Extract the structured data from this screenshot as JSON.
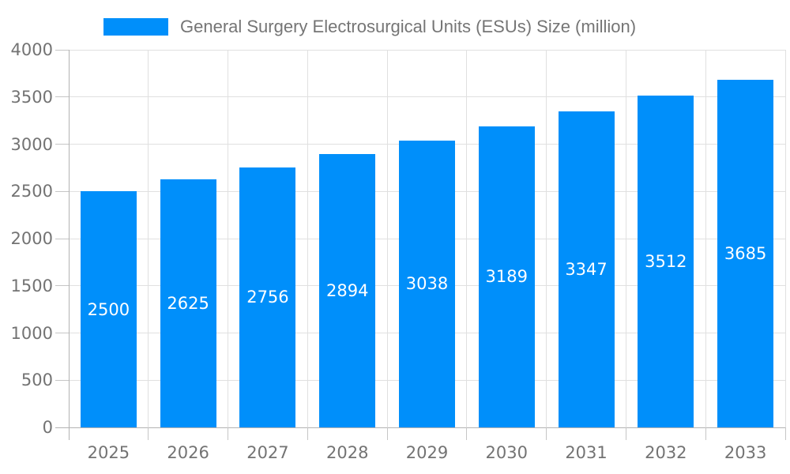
{
  "legend": {
    "label": "General Surgery Electrosurgical Units (ESUs) Size (million)"
  },
  "chart_data": {
    "type": "bar",
    "title": "General Surgery Electrosurgical Units (ESUs) Size (million)",
    "categories": [
      "2025",
      "2026",
      "2027",
      "2028",
      "2029",
      "2030",
      "2031",
      "2032",
      "2033"
    ],
    "values": [
      2500,
      2625,
      2756,
      2894,
      3038,
      3189,
      3347,
      3512,
      3685
    ],
    "series": [
      {
        "name": "General Surgery Electrosurgical Units (ESUs) Size (million)",
        "values": [
          2500,
          2625,
          2756,
          2894,
          3038,
          3189,
          3347,
          3512,
          3685
        ]
      }
    ],
    "xlabel": "",
    "ylabel": "",
    "ylim": [
      0,
      4000
    ],
    "ytick_step": 500,
    "yticks": [
      "0",
      "500",
      "1000",
      "1500",
      "2000",
      "2500",
      "3000",
      "3500",
      "4000"
    ],
    "grid": true,
    "legend_position": "top",
    "value_label_position": "inside-center",
    "colors": {
      "bar": "#008ffa",
      "value_label": "#ffffff",
      "axis_text": "#737373",
      "legend_text": "#757575",
      "gridline": "#e0e0e0",
      "axis_line": "#b3b3b3",
      "tick": "#c6c6c6",
      "background": "#ffffff"
    }
  }
}
